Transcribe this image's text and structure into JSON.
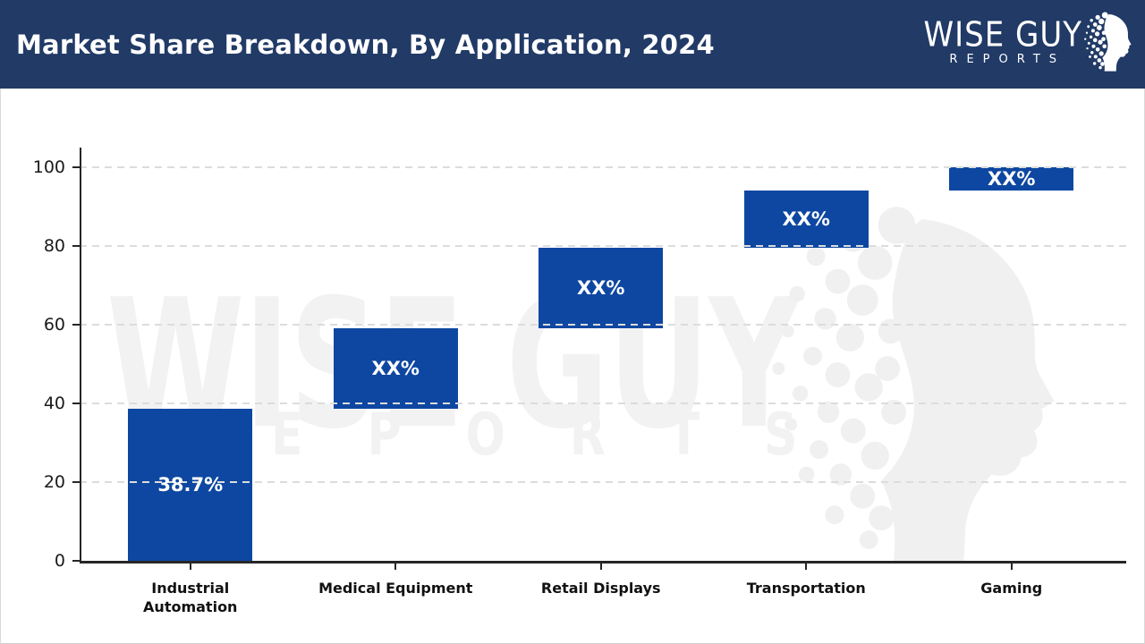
{
  "header": {
    "title": "Market Share Breakdown, By Application, 2024",
    "logo_line1": "WISE GUY",
    "logo_line2": "REPORTS"
  },
  "watermark": {
    "line1": "WISE GUY",
    "line2": "REPORTS"
  },
  "colors": {
    "header_bg": "#213a66",
    "bar": "#0d47a1",
    "axis": "#262626",
    "gridline": "#dcdcdc",
    "bar_label_text": "#ffffff",
    "watermark": "#f2f2f2"
  },
  "chart_data": {
    "type": "bar",
    "subtype": "waterfall",
    "title": "Market Share Breakdown, By Application, 2024",
    "categories": [
      "Industrial\nAutomation",
      "Medical Equipment",
      "Retail Displays",
      "Transportation",
      "Gaming"
    ],
    "bar_labels": [
      "38.7%",
      "XX%",
      "XX%",
      "XX%",
      "XX%"
    ],
    "segments": [
      {
        "start": 0,
        "end": 38.7
      },
      {
        "start": 38.7,
        "end": 59.2
      },
      {
        "start": 59.2,
        "end": 79.5
      },
      {
        "start": 79.5,
        "end": 94.0
      },
      {
        "start": 94.0,
        "end": 100.0
      }
    ],
    "first_bar_value_pct": 38.7,
    "yticks": [
      0,
      20,
      40,
      60,
      80,
      100
    ],
    "ylim": [
      0,
      105
    ],
    "xlabel": "",
    "ylabel": "",
    "grid": {
      "axis": "y",
      "style": "dashed",
      "drawn_over_bars": true
    },
    "legend": null
  }
}
